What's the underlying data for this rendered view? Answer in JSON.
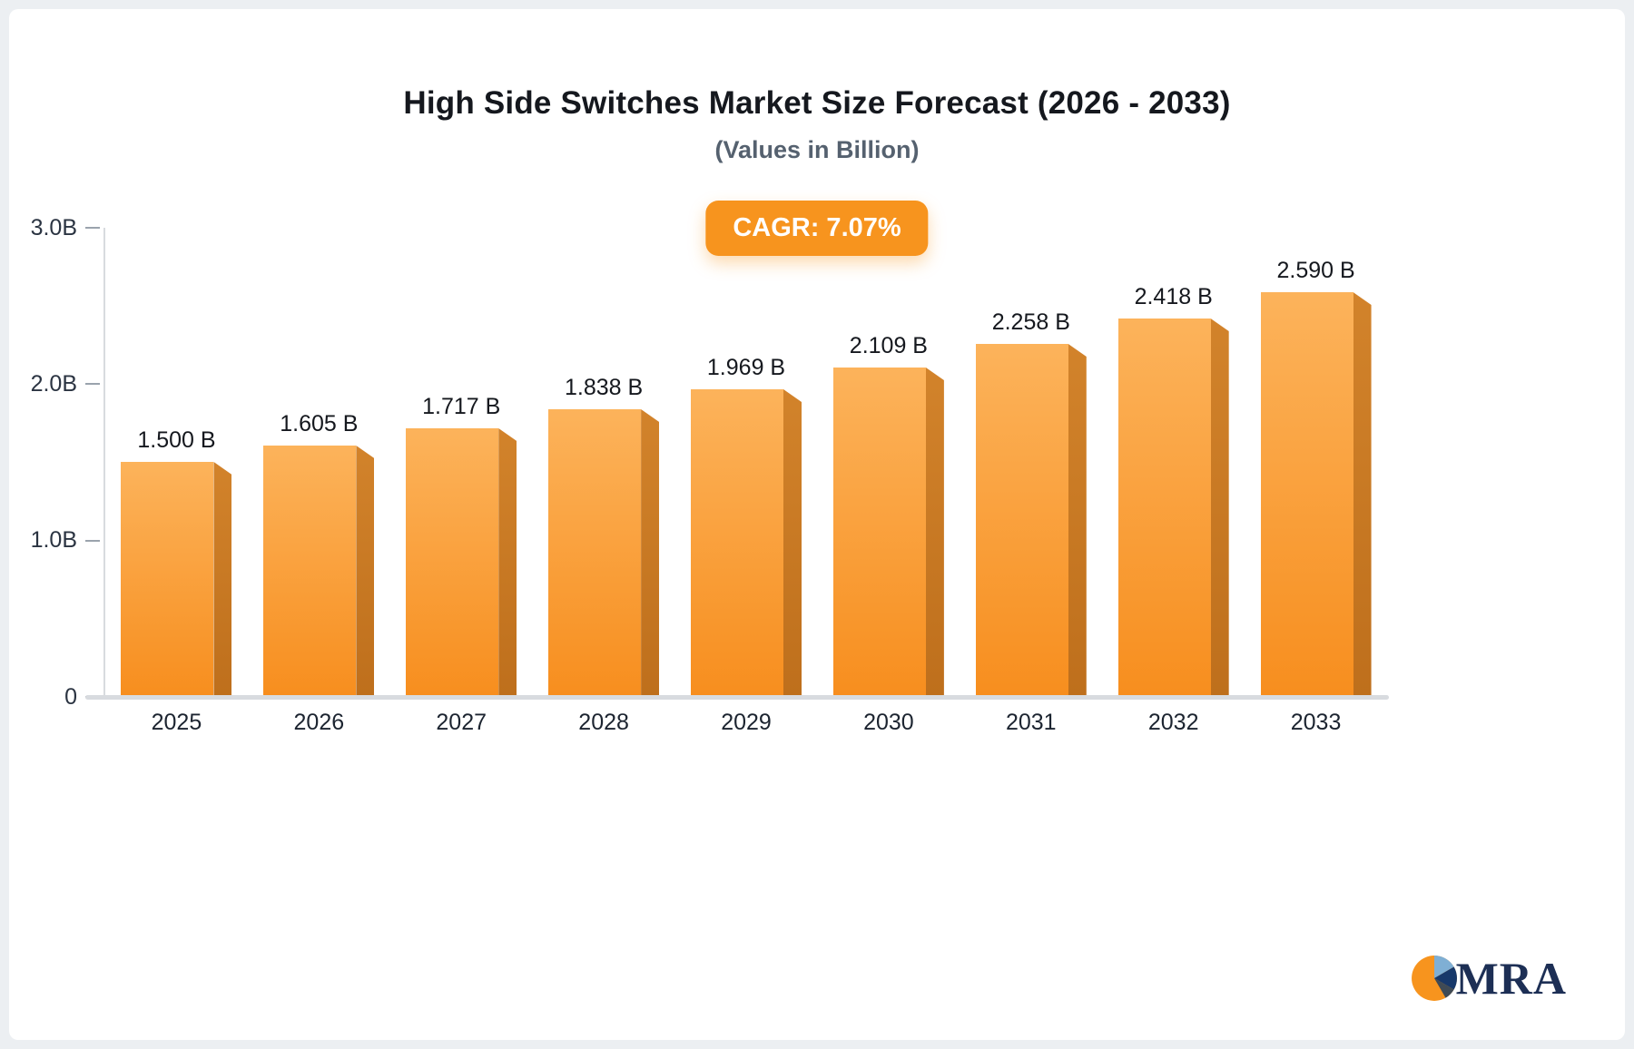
{
  "page": {
    "background": "#ECEFF2",
    "card_background": "#FFFFFF"
  },
  "chart_data": {
    "type": "bar",
    "title": "High Side Switches Market Size Forecast (2026 - 2033)",
    "subtitle": "(Values in Billion)",
    "cagr_label": "CAGR: 7.07%",
    "categories": [
      "2025",
      "2026",
      "2027",
      "2028",
      "2029",
      "2030",
      "2031",
      "2032",
      "2033"
    ],
    "values": [
      1.5,
      1.605,
      1.717,
      1.838,
      1.969,
      2.109,
      2.258,
      2.418,
      2.59
    ],
    "value_labels": [
      "1.500 B",
      "1.605 B",
      "1.717 B",
      "1.838 B",
      "1.969 B",
      "2.109 B",
      "2.258 B",
      "2.418 B",
      "2.590 B"
    ],
    "xlabel": "",
    "ylabel": "",
    "ylim": [
      0,
      3
    ],
    "yticks": [
      {
        "label": "3.0B",
        "value": 3.0
      },
      {
        "label": "2.0B",
        "value": 2.0
      },
      {
        "label": "1.0B",
        "value": 1.0
      },
      {
        "label": "0",
        "value": 0
      }
    ],
    "grid": false,
    "legend": "none"
  },
  "branding": {
    "logo_text": "MRA"
  },
  "colors": {
    "accent": "#F7941E",
    "badge_text": "#FFFFFF",
    "bar_top": "#FCB35B",
    "bar_bottom": "#F78E1E",
    "bar_side_top": "#D2832B",
    "bar_side_bottom": "#BE6F1C",
    "axis": "#D8DBDF",
    "tick_dash": "#9AA3AD",
    "text_dark": "#15181E",
    "axis_label": "#2B3442",
    "navy": "#1D2F55",
    "logo_navy": "#17386A",
    "logo_lightblue": "#7FAFD4",
    "logo_gray": "#3F4A55"
  }
}
